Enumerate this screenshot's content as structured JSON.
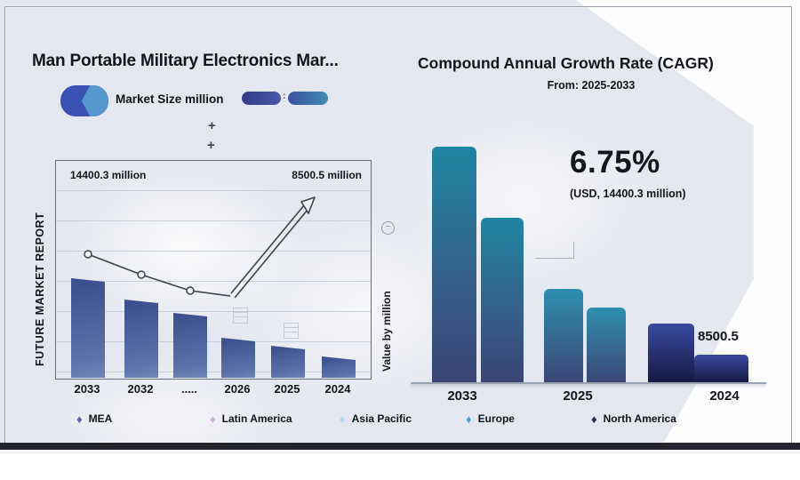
{
  "header": {
    "left_title": "Man Portable Military Electronics Mar...",
    "market_size_label": "Market Size million",
    "ratio_separator": ":"
  },
  "left_chart": {
    "start_label": "14400.3 million",
    "end_label": "8500.5 million",
    "watermark": "FUTURE MARKET REPORT",
    "plus_glyph": "+",
    "minus_glyph": "−"
  },
  "right_panel": {
    "heading": "Compound Annual Growth Rate (CAGR)",
    "subheading": "From: 2025-2033",
    "cagr_value": "6.75%",
    "cagr_note": "(USD, 14400.3 million)",
    "value_axis_label": "Value by million",
    "annotation": "8500.5"
  },
  "legend": {
    "items": [
      {
        "label": "MEA",
        "color": "#6f58ab"
      },
      {
        "label": "Latin America",
        "color": "#d9aee3"
      },
      {
        "label": "Asia Pacific",
        "color": "#a9d9ec"
      },
      {
        "label": "Europe",
        "color": "#47a3e0"
      },
      {
        "label": "North America",
        "color": "#262a56"
      }
    ]
  },
  "colors": {
    "background": "#e4e7ef",
    "text": "#14151d",
    "left_bar_gradient": [
      "#3a4d8c",
      "#7286b8"
    ],
    "right_bar_2033_gradient": [
      "#1f86a1",
      "#3a4473"
    ],
    "right_bar_2025_gradient": [
      "#2e8fae",
      "#3c4677"
    ],
    "right_bar_2024_gradient": [
      "#3a49a1",
      "#141a43"
    ]
  },
  "chart_data": [
    {
      "type": "bar",
      "title": "Market Size million",
      "categories": [
        "2033",
        "2032",
        ".....",
        "2026",
        "2025",
        "2024"
      ],
      "values_relative": [
        1.0,
        0.79,
        0.65,
        0.4,
        0.32,
        0.21
      ],
      "labeled_values": {
        "2033": "14400.3 million",
        "2024": "8500.5 million"
      },
      "ylabel": "FUTURE MARKET REPORT",
      "layout": {
        "grid": "horizontal",
        "trend": "line with markers descending, double-line arrow rising to upper right"
      }
    },
    {
      "type": "bar",
      "title": "Compound Annual Growth Rate (CAGR)",
      "subtitle": "From: 2025-2033",
      "categories": [
        "2033",
        "2025",
        "2024"
      ],
      "series": [
        {
          "name": "primary",
          "values_relative": [
            1.0,
            0.4,
            0.25
          ]
        },
        {
          "name": "secondary",
          "values_relative": [
            0.7,
            0.32,
            0.12
          ]
        }
      ],
      "annotations": [
        {
          "category": "2024",
          "text": "8500.5"
        }
      ],
      "cagr": "6.75%",
      "basis": "(USD, 14400.3 million)",
      "ylabel": "Value by million",
      "layout": {
        "legend_position": "bottom",
        "grid": "off"
      }
    }
  ]
}
